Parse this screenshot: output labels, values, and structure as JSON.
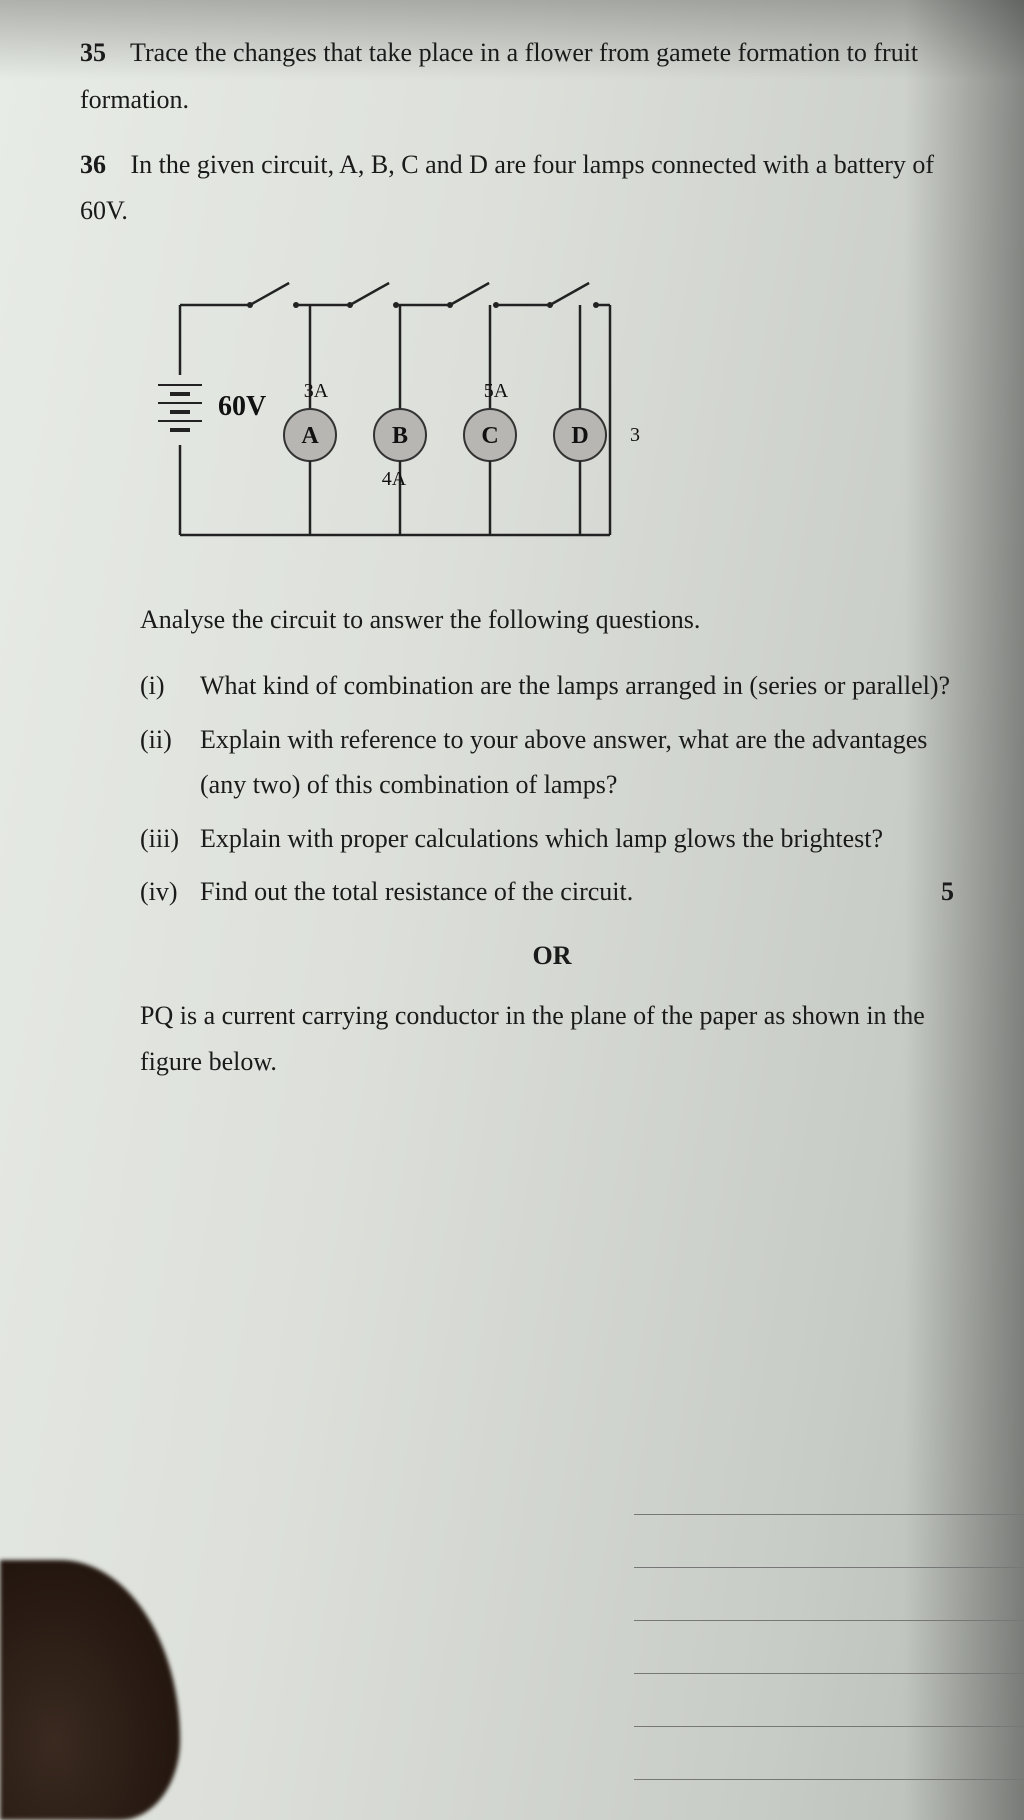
{
  "q35": {
    "num": "35",
    "text": "Trace the changes that take place in a flower from gamete formation to fruit formation."
  },
  "q36": {
    "num": "36",
    "text": "In the given circuit, A, B, C and D are four lamps connected with a battery of 60V."
  },
  "circuit": {
    "battery_label": "60V",
    "lamps": [
      {
        "id": "A",
        "current": "3A"
      },
      {
        "id": "B",
        "current": "4A"
      },
      {
        "id": "C",
        "current": "5A"
      },
      {
        "id": "D",
        "current": "3A"
      }
    ],
    "stroke": "#222222",
    "lamp_fill": "#b8b6b2",
    "lamp_stroke": "#333333",
    "label_fontsize": 20,
    "lamp_radius": 26
  },
  "instruction": "Analyse the circuit to answer the following questions.",
  "subs": [
    {
      "marker": "(i)",
      "text": "What kind of combination are the lamps arranged in (series or parallel)?"
    },
    {
      "marker": "(ii)",
      "text": "Explain with reference to your above answer, what are the advantages (any two) of this combination of lamps?"
    },
    {
      "marker": "(iii)",
      "text": "Explain with proper calculations which lamp glows the brightest?"
    },
    {
      "marker": "(iv)",
      "text": "Find out the total resistance of the circuit."
    }
  ],
  "marks": "5",
  "or": "OR",
  "pq": "PQ is a current carrying conductor in the plane of the paper as shown in the figure below."
}
